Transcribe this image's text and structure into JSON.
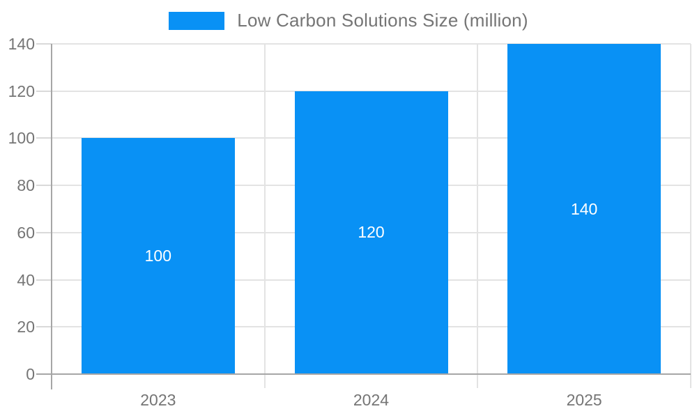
{
  "legend": {
    "label": "Low Carbon Solutions Size (million)",
    "swatch_color": "#0991f5"
  },
  "chart_data": {
    "type": "bar",
    "title": "",
    "xlabel": "",
    "ylabel": "",
    "categories": [
      "2023",
      "2024",
      "2025"
    ],
    "series": [
      {
        "name": "Low Carbon Solutions Size (million)",
        "values": [
          100,
          120,
          140
        ]
      }
    ],
    "bar_labels": [
      "100",
      "120",
      "140"
    ],
    "ylim": [
      0,
      140
    ],
    "yticks": [
      0,
      20,
      40,
      60,
      80,
      100,
      120,
      140
    ],
    "grid": true,
    "legend_position": "top-center",
    "bar_color": "#0991f5",
    "bar_label_color": "#ffffff"
  },
  "colors": {
    "axis": "#a6a6a6",
    "gridline": "#e3e3e3",
    "tick_mark": "#d9d9d9",
    "tick_text": "#757575",
    "background": "#ffffff"
  }
}
